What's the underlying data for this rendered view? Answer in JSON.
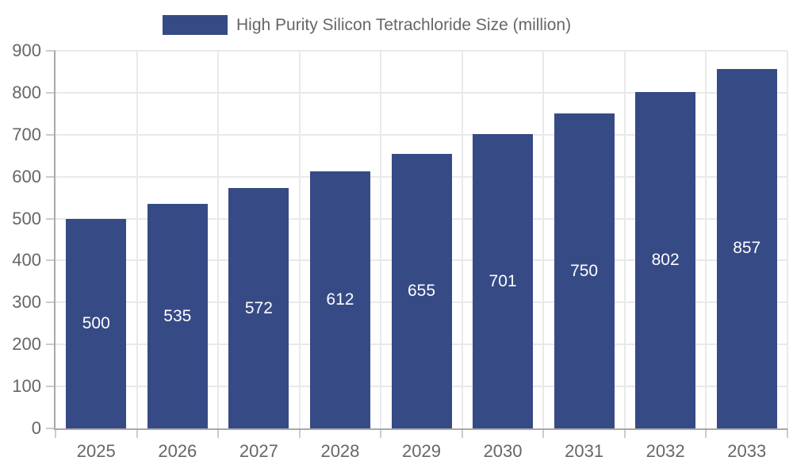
{
  "legend": {
    "label": "High Purity Silicon Tetrachloride Size (million)"
  },
  "colors": {
    "bar": "#364a85",
    "grid": "#e9e9e9",
    "axis_line": "#a9a9a9",
    "tick": "#cccccc",
    "axis_label": "#666666",
    "value_label": "#ffffff",
    "legend_text": "#666666"
  },
  "chart_data": {
    "type": "bar",
    "title": "High Purity Silicon Tetrachloride Size (million)",
    "categories": [
      "2025",
      "2026",
      "2027",
      "2028",
      "2029",
      "2030",
      "2031",
      "2032",
      "2033"
    ],
    "values": [
      500,
      535,
      572,
      612,
      655,
      701,
      750,
      802,
      857
    ],
    "xlabel": "",
    "ylabel": "",
    "ylim": [
      0,
      900
    ],
    "ytick_step": 100,
    "grid": true,
    "legend_position": "top",
    "value_labels": "inside-center"
  }
}
